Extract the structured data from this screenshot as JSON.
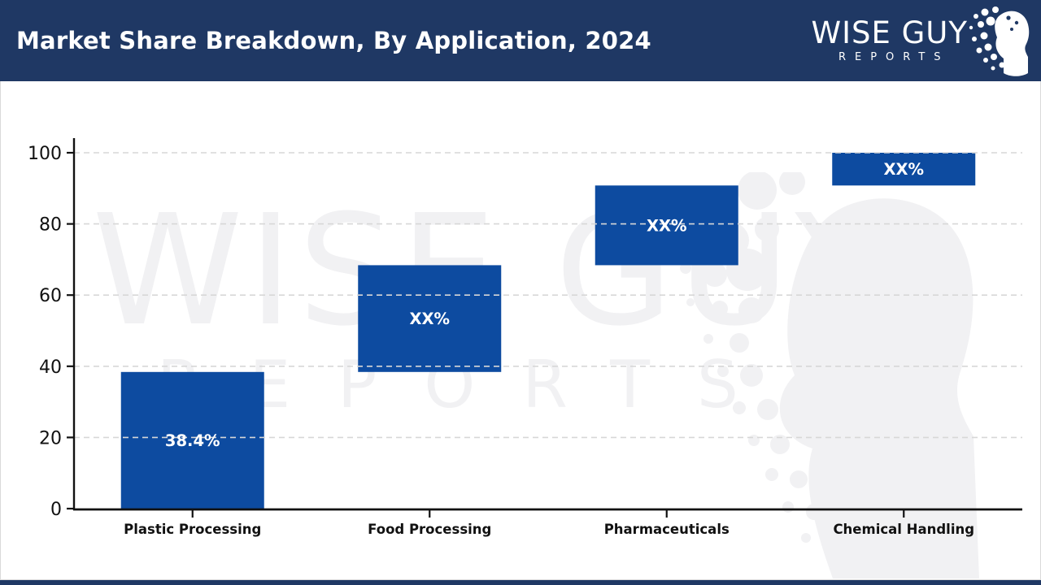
{
  "header": {
    "title": "Market Share Breakdown, By Application, 2024",
    "logo": {
      "line1": "WISE GUY",
      "line2": "REPORTS"
    }
  },
  "watermark": {
    "line1": "WISE GUY",
    "line2": "REPORTS"
  },
  "colors": {
    "header_navy": "#1f3864",
    "bar_blue": "#0d4ba0",
    "grid_gray": "#d7d7d7",
    "axis_black": "#111111",
    "bar_label_white": "#ffffff",
    "watermark_gray": "#f1f1f3"
  },
  "chart_data": {
    "type": "bar",
    "subtype": "floating-waterfall",
    "title": "Market Share Breakdown, By Application, 2024",
    "categories": [
      "Plastic Processing",
      "Food Processing",
      "Pharmaceuticals",
      "Chemical Handling"
    ],
    "segments": [
      [
        0,
        38.4
      ],
      [
        38.4,
        68.4
      ],
      [
        68.4,
        90.8
      ],
      [
        90.8,
        100
      ]
    ],
    "bar_labels": [
      "38.4%",
      "XX%",
      "XX%",
      "XX%"
    ],
    "yticks": [
      0,
      20,
      40,
      60,
      80,
      100
    ],
    "ylim": [
      0,
      105
    ],
    "xlabel": "",
    "ylabel": "",
    "grid": "horizontal-dashed",
    "legend": "none"
  }
}
